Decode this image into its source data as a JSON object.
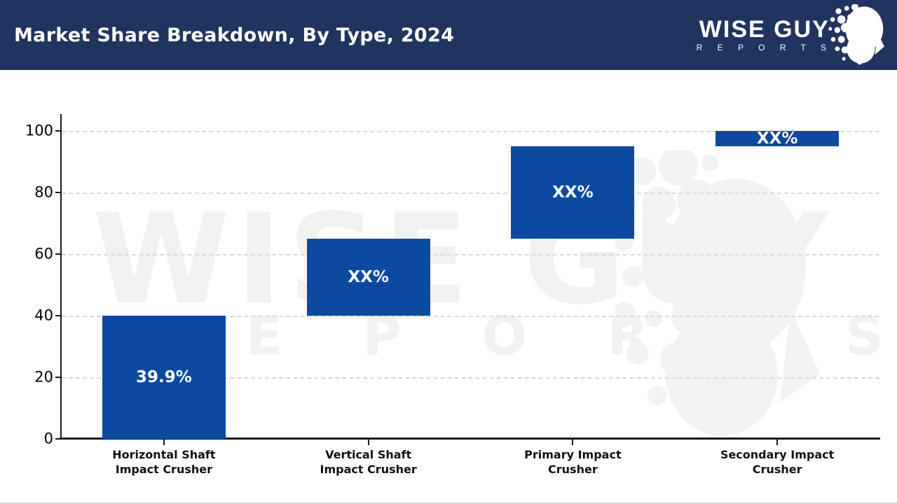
{
  "header": {
    "title": "Market Share Breakdown, By Type, 2024",
    "logo": {
      "line1": "WISE GUY",
      "line2": "R E P O R T S"
    }
  },
  "watermark": {
    "line1": "WISE GUY",
    "line2": "R E P O R T S"
  },
  "colors": {
    "header_navy": "#20345f",
    "bar_blue": "#0b4aa0",
    "grid_gray": "#d8d8d8",
    "axis_black": "#1a1a1a",
    "value_label_white": "#ffffff",
    "watermark_gray": "#f1f1f2"
  },
  "chart_data": {
    "type": "bar",
    "subtype": "waterfall",
    "title": "Market Share Breakdown, By Type, 2024",
    "xlabel": "",
    "ylabel": "",
    "ylim": [
      0,
      100
    ],
    "yticks": [
      0,
      20,
      40,
      60,
      80,
      100
    ],
    "grid": "horizontal-dashed",
    "legend": "none",
    "categories": [
      "Horizontal Shaft Impact Crusher",
      "Vertical Shaft Impact Crusher",
      "Primary Impact Crusher",
      "Secondary Impact Crusher"
    ],
    "bars": [
      {
        "category": "Horizontal Shaft Impact Crusher",
        "label_lines": [
          "Horizontal Shaft",
          "Impact Crusher"
        ],
        "start": 0,
        "end": 39.9,
        "value_label": "39.9%"
      },
      {
        "category": "Vertical Shaft Impact Crusher",
        "label_lines": [
          "Vertical Shaft",
          "Impact Crusher"
        ],
        "start": 39.9,
        "end": 65,
        "value_label": "XX%"
      },
      {
        "category": "Primary Impact Crusher",
        "label_lines": [
          "Primary Impact",
          "Crusher"
        ],
        "start": 65,
        "end": 95,
        "value_label": "XX%"
      },
      {
        "category": "Secondary Impact Crusher",
        "label_lines": [
          "Secondary Impact",
          "Crusher"
        ],
        "start": 95,
        "end": 100,
        "value_label": "XX%"
      }
    ]
  }
}
